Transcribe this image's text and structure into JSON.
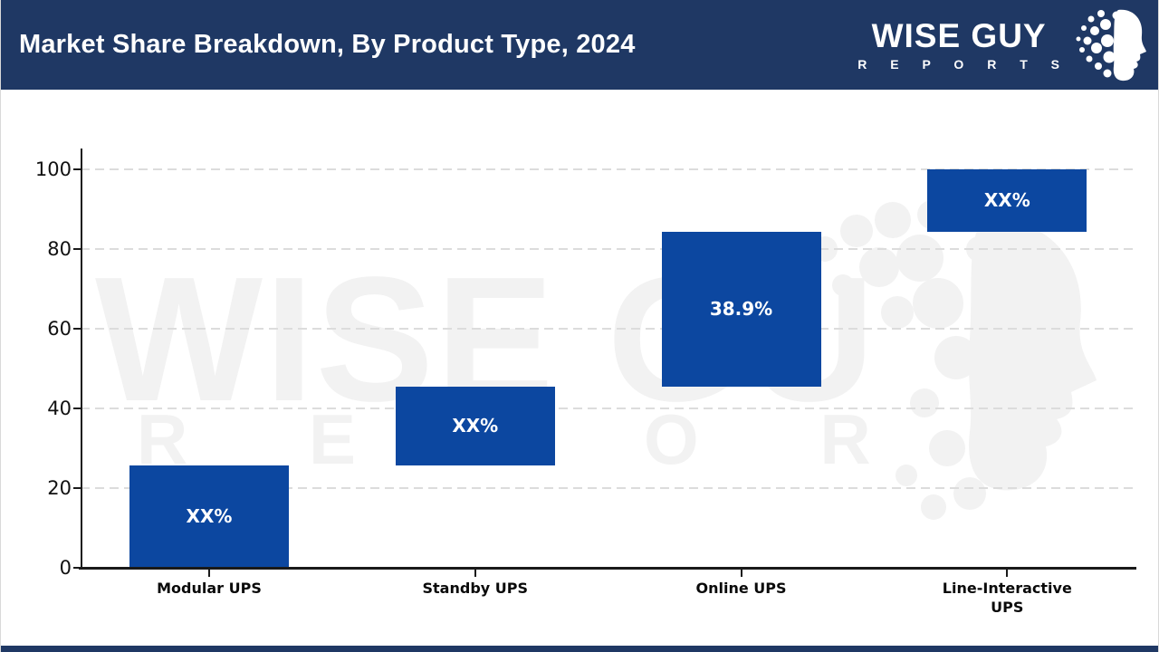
{
  "header": {
    "title": "Market Share Breakdown, By Product Type, 2024",
    "bg_color": "#1f3864",
    "logo": {
      "line1": "WISE GUY",
      "line2": "R E P O R T S"
    }
  },
  "watermark": {
    "line1": "WISE GU",
    "line2": "R E P O R T S"
  },
  "footer": {
    "bg_color": "#1f3864"
  },
  "chart_data": {
    "type": "bar",
    "variant": "floating-waterfall",
    "title": "Market Share Breakdown, By Product Type, 2024",
    "categories": [
      "Modular UPS",
      "Standby UPS",
      "Online UPS",
      "Line-Interactive UPS"
    ],
    "segments": [
      {
        "category": "Modular UPS",
        "start": 0,
        "end": 25.7,
        "value_label": "XX%"
      },
      {
        "category": "Standby UPS",
        "start": 25.7,
        "end": 45.5,
        "value_label": "XX%"
      },
      {
        "category": "Online UPS",
        "start": 45.5,
        "end": 84.4,
        "value_label": "38.9%"
      },
      {
        "category": "Line-Interactive UPS",
        "start": 84.4,
        "end": 100,
        "value_label": "XX%"
      }
    ],
    "yticks": [
      0,
      20,
      40,
      60,
      80,
      100
    ],
    "ylim": [
      0,
      105
    ],
    "xlabel": "",
    "ylabel": "",
    "bar_color": "#0c47a0",
    "grid": "horizontal-dashed",
    "grid_color": "#dcdcdc",
    "legend": "none"
  }
}
